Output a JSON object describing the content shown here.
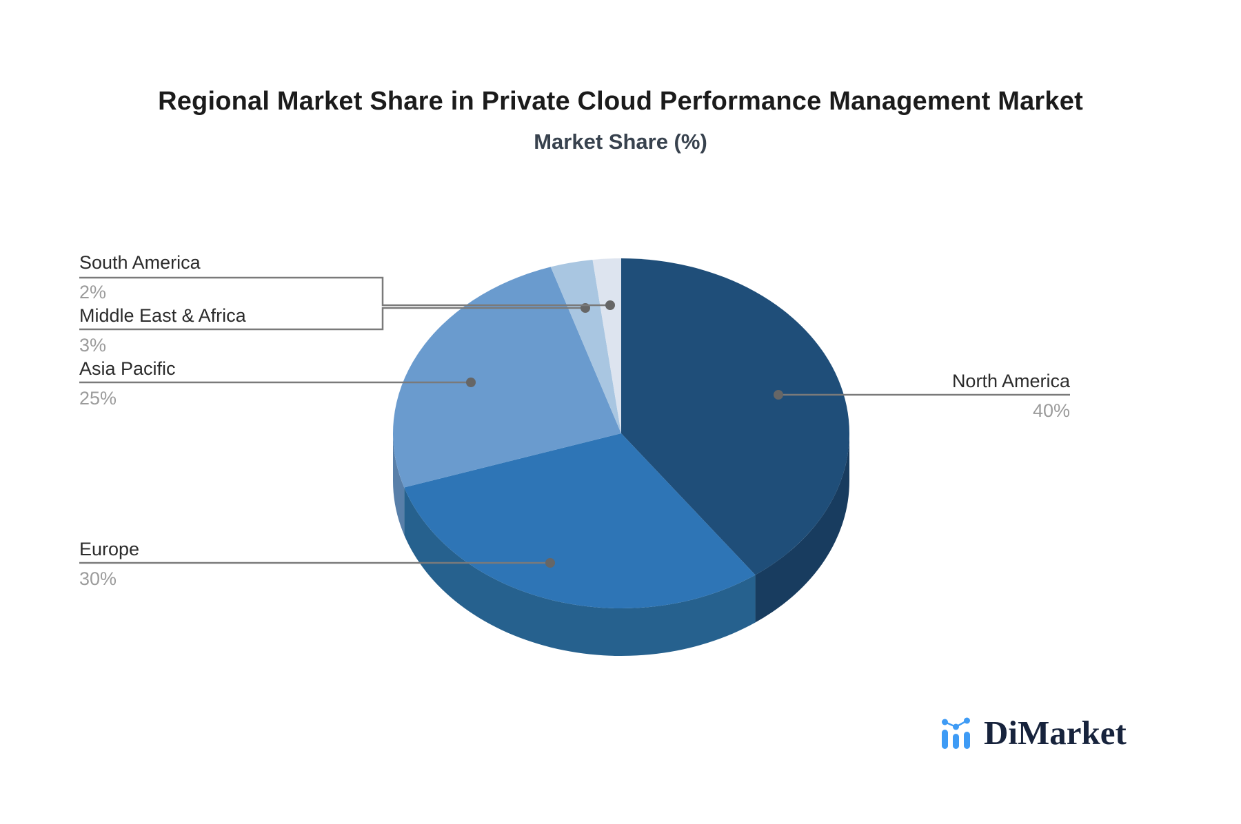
{
  "title": "Regional Market Share in Private Cloud Performance Management Market",
  "subtitle": "Market Share (%)",
  "chart_data": {
    "type": "pie",
    "style": "3d",
    "title": "Regional Market Share in Private Cloud Performance Management Market",
    "subtitle": "Market Share (%)",
    "unit": "%",
    "direction": "clockwise",
    "start_angle_deg": 0,
    "legend": "none",
    "categories": [
      "North America",
      "Europe",
      "Asia Pacific",
      "Middle East & Africa",
      "South America"
    ],
    "values": [
      40,
      30,
      25,
      3,
      2
    ],
    "slices": [
      {
        "id": "north-america",
        "name": "North America",
        "value": 40,
        "pct_label": "40%",
        "color": "#1F4E79",
        "side_color": "#183C5F",
        "label_side": "right"
      },
      {
        "id": "europe",
        "name": "Europe",
        "value": 30,
        "pct_label": "30%",
        "color": "#2E75B6",
        "side_color": "#26618E",
        "label_side": "left"
      },
      {
        "id": "asia-pacific",
        "name": "Asia Pacific",
        "value": 25,
        "pct_label": "25%",
        "color": "#6A9BCE",
        "side_color": "#587FA9",
        "label_side": "left"
      },
      {
        "id": "middle-east-africa",
        "name": "Middle East & Africa",
        "value": 3,
        "pct_label": "3%",
        "color": "#A9C6E1",
        "side_color": "#8BA3B9",
        "label_side": "left"
      },
      {
        "id": "south-america",
        "name": "South America",
        "value": 2,
        "pct_label": "2%",
        "color": "#DDE4EF",
        "side_color": "#B6BDC6",
        "label_side": "left"
      }
    ],
    "leader_line_color": "#7A7A7A",
    "leader_dot_color": "#666666",
    "label_name_color": "#2B2B2B",
    "label_pct_color": "#9B9B9B"
  },
  "logo": {
    "text": "DiMarket",
    "icon": "bar-chart-logo-icon",
    "icon_color": "#3E9BF5",
    "text_color": "#17233C"
  },
  "canvas": {
    "background": "#FFFFFF"
  }
}
